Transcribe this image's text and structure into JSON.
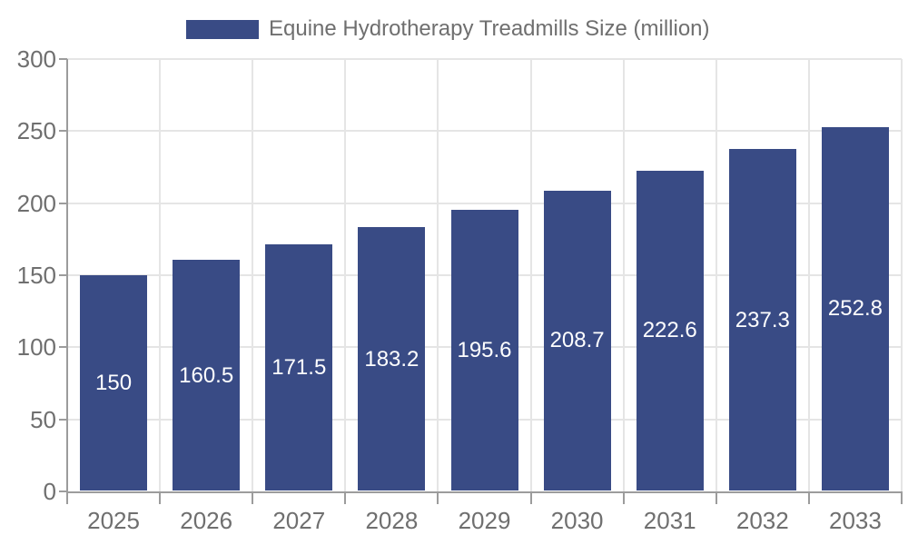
{
  "chart_data": {
    "type": "bar",
    "title": "Equine Hydrotherapy Treadmills Size (million)",
    "categories": [
      "2025",
      "2026",
      "2027",
      "2028",
      "2029",
      "2030",
      "2031",
      "2032",
      "2033"
    ],
    "values": [
      150,
      160.5,
      171.5,
      183.2,
      195.6,
      208.7,
      222.6,
      237.3,
      252.8
    ],
    "value_labels": [
      "150",
      "160.5",
      "171.5",
      "183.2",
      "195.6",
      "208.7",
      "222.6",
      "237.3",
      "252.8"
    ],
    "xlabel": "",
    "ylabel": "",
    "ylim": [
      0,
      300
    ],
    "yticks": [
      0,
      50,
      100,
      150,
      200,
      250,
      300
    ],
    "grid": true,
    "legend_position": "top",
    "colors": {
      "bar": "#394B85",
      "value_label": "#FFFFFF",
      "axis": "#9C9C9C",
      "gridline": "#E5E5E5",
      "tick_text": "#6F6F6F",
      "legend_text": "#6F6F6F",
      "background": "#FFFFFF"
    }
  }
}
